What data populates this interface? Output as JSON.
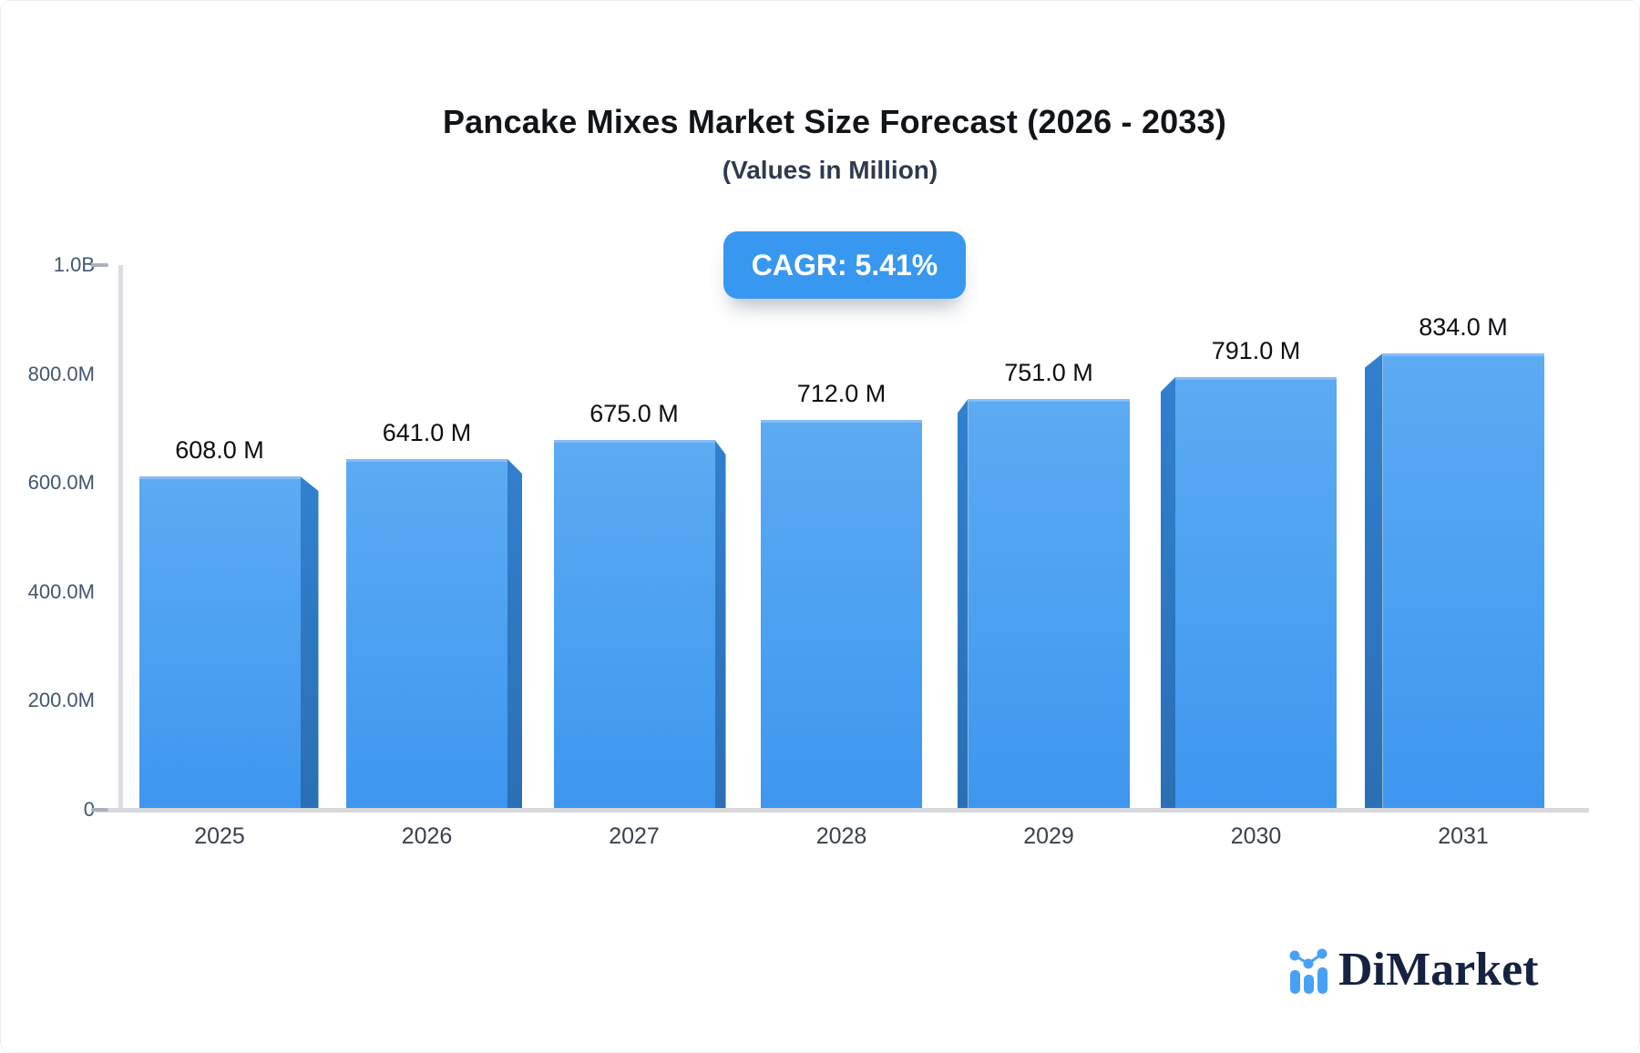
{
  "header": {
    "title": "Pancake Mixes Market Size Forecast (2026 - 2033)",
    "subtitle": "(Values in Million)",
    "cagr_label": "CAGR: 5.41%"
  },
  "chart_data": {
    "type": "bar",
    "title": "Pancake Mixes Market Size Forecast (2026 - 2033)",
    "subtitle": "(Values in Million)",
    "categories": [
      "2025",
      "2026",
      "2027",
      "2028",
      "2029",
      "2030",
      "2031"
    ],
    "values": [
      608,
      641,
      675,
      712,
      751,
      791,
      834
    ],
    "value_labels": [
      "608.0 M",
      "641.0 M",
      "675.0 M",
      "712.0 M",
      "751.0 M",
      "791.0 M",
      "834.0 M"
    ],
    "cagr_percent": "5.41%",
    "xlabel": "",
    "ylabel": "",
    "ylim": [
      0,
      1000
    ],
    "y_ticks": [
      {
        "label": "1.0B",
        "value": 1000,
        "dash": true
      },
      {
        "label": "800.0M",
        "value": 800,
        "dash": false
      },
      {
        "label": "600.0M",
        "value": 600,
        "dash": false
      },
      {
        "label": "400.0M",
        "value": 400,
        "dash": false
      },
      {
        "label": "200.0M",
        "value": 200,
        "dash": false
      },
      {
        "label": "0",
        "value": 0,
        "dash": true
      }
    ],
    "grid": false,
    "legend": false,
    "style": "3d-perspective-bars"
  },
  "footer": {
    "brand_name": "DiMarket",
    "brand_icon": "mini-bar-line-chart-icon"
  },
  "colors": {
    "bar_face_top": "#5caaf2",
    "bar_face_bottom": "#3e96f0",
    "bar_side": "#2e78c2",
    "badge_bg": "#3898f0",
    "badge_text": "#ffffff",
    "axis_line": "#d9dbde",
    "title_text": "#111418",
    "subtitle_text": "#2f3b4d",
    "y_label_text": "#42566e",
    "x_label_text": "#39424f",
    "value_label_text": "#0c0e12",
    "logo_text": "#152240",
    "logo_icon": "#49a1f6"
  }
}
